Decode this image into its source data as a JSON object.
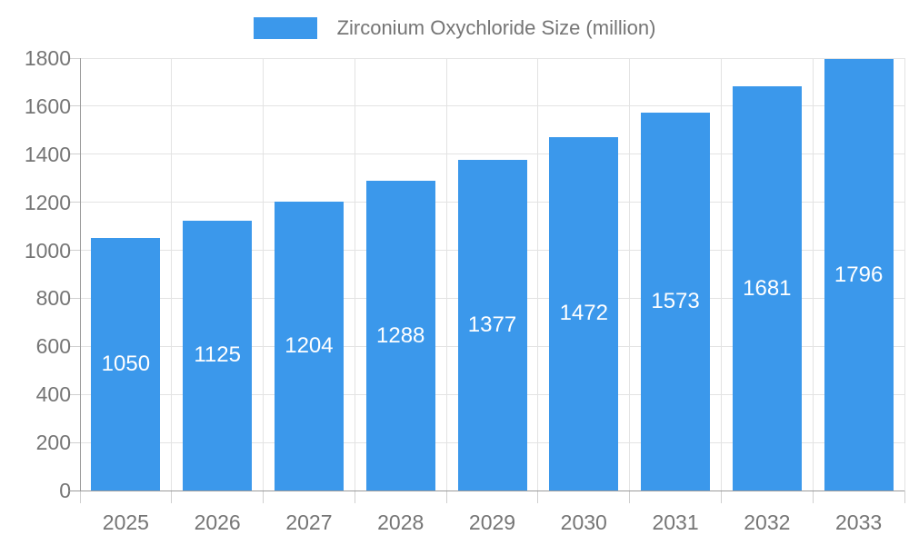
{
  "legend": {
    "label": "Zirconium Oxychloride Size (million)"
  },
  "colors": {
    "bar": "#3B98EB",
    "bar_label": "#FFFFFF",
    "axis_line": "#9A9A9A",
    "tick": "#CFCFCF",
    "grid": "#E3E3E3",
    "label_text": "#757575",
    "background": "#FFFFFF"
  },
  "chart_data": {
    "type": "bar",
    "title": "Zirconium Oxychloride Size (million)",
    "categories": [
      "2025",
      "2026",
      "2027",
      "2028",
      "2029",
      "2030",
      "2031",
      "2032",
      "2033"
    ],
    "values": [
      1050,
      1125,
      1204,
      1288,
      1377,
      1472,
      1573,
      1681,
      1796
    ],
    "series": [
      {
        "name": "Zirconium Oxychloride Size (million)",
        "values": [
          1050,
          1125,
          1204,
          1288,
          1377,
          1472,
          1573,
          1681,
          1796
        ]
      }
    ],
    "xlabel": "",
    "ylabel": "",
    "ylim": [
      0,
      1800
    ],
    "yticks": [
      0,
      200,
      400,
      600,
      800,
      1000,
      1200,
      1400,
      1600,
      1800
    ],
    "grid": true,
    "legend_position": "top-center",
    "value_label_position": "inside-center"
  }
}
